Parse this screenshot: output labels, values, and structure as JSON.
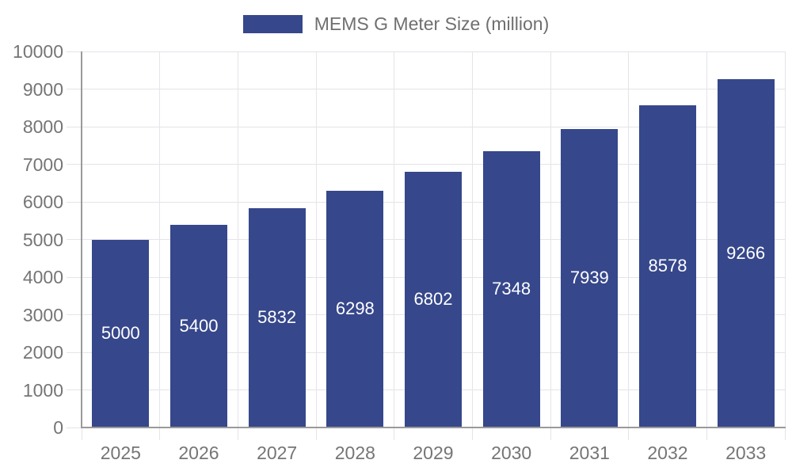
{
  "legend": {
    "label": "MEMS G Meter Size (million)"
  },
  "chart_data": {
    "type": "bar",
    "title": "",
    "xlabel": "",
    "ylabel": "",
    "legend_entries": [
      "MEMS G Meter Size (million)"
    ],
    "legend_position": "top-center",
    "categories": [
      "2025",
      "2026",
      "2027",
      "2028",
      "2029",
      "2030",
      "2031",
      "2032",
      "2033"
    ],
    "values": [
      5000,
      5400,
      5832,
      6298,
      6802,
      7348,
      7939,
      8578,
      9266
    ],
    "value_labels": "inside-center",
    "ylim": [
      0,
      10000
    ],
    "ytick_interval": 1000,
    "y_ticks": [
      "0",
      "1000",
      "2000",
      "3000",
      "4000",
      "5000",
      "6000",
      "7000",
      "8000",
      "9000",
      "10000"
    ],
    "grid": true
  },
  "colors": {
    "bar": "#36478b",
    "grid": "#e4e4ea",
    "axis": "#9a9a9a",
    "tick_text": "#757575",
    "legend_text": "#6f6f6f",
    "value_label_text": "#ffffff",
    "background": "#ffffff"
  }
}
